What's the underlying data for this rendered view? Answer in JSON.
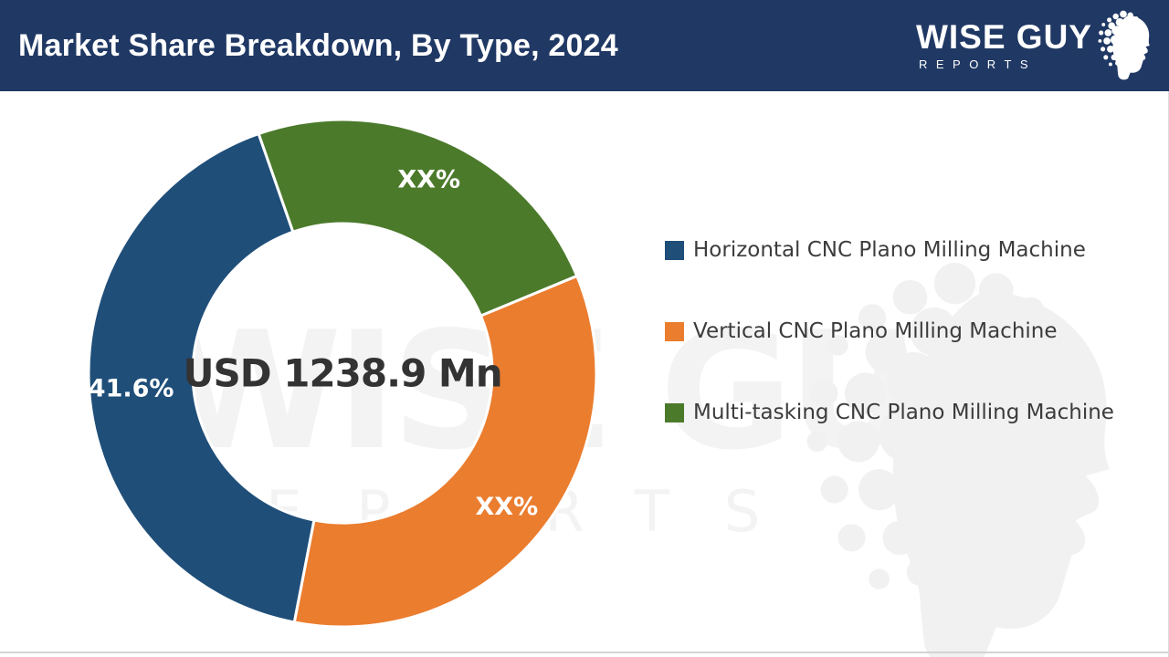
{
  "header": {
    "title": "Market Share Breakdown, By Type, 2024",
    "logo": {
      "name": "WISE GUY",
      "sub": "REPORTS"
    }
  },
  "watermark": {
    "name": "WISE GUY",
    "sub": "REPORTS"
  },
  "chart_data": {
    "type": "pie",
    "subtype": "donut",
    "title": "Market Share Breakdown, By Type, 2024",
    "center_label": "USD 1238.9 Mn",
    "legend_position": "right",
    "donut_hole_ratio": 0.59,
    "rotation_deg_from_12oclock": -19.3,
    "segments": [
      {
        "label": "Horizontal CNC Plano Milling Machine",
        "color": "#1F4E79",
        "value_pct": 41.6,
        "data_label": "41.6%"
      },
      {
        "label": "Vertical CNC Plano Milling Machine",
        "color": "#EB7D2F",
        "value_pct": 34.3,
        "data_label": "XX%"
      },
      {
        "label": "Multi-tasking CNC Plano Milling Machine",
        "color": "#4B7A2B",
        "value_pct": 24.1,
        "data_label": "XX%"
      }
    ],
    "draw_order": [
      2,
      1,
      0
    ]
  },
  "colors": {
    "header_bg": "#203864",
    "center_text": "#333333",
    "legend_text": "#3C3C3C",
    "watermark": "#F3F3F3",
    "separator": "#FFFFFF"
  }
}
